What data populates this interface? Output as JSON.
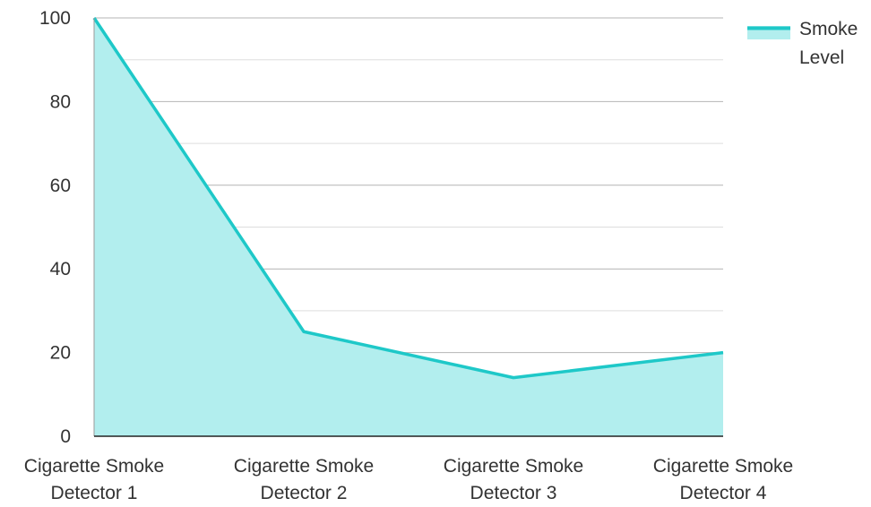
{
  "chart_data": {
    "type": "area",
    "categories": [
      [
        "Cigarette Smoke",
        "Detector 1"
      ],
      [
        "Cigarette Smoke",
        "Detector 2"
      ],
      [
        "Cigarette Smoke",
        "Detector 3"
      ],
      [
        "Cigarette Smoke",
        "Detector 4"
      ]
    ],
    "series": [
      {
        "name": "Smoke Level",
        "name_lines": [
          "Smoke",
          "Level"
        ],
        "values": [
          100,
          25,
          14,
          20
        ]
      }
    ],
    "ylim": [
      0,
      100
    ],
    "yticks": [
      "0",
      "20",
      "40",
      "60",
      "80",
      "100"
    ],
    "grid": true,
    "legend_position": "top-right",
    "colors": {
      "line": "#1ec8c8",
      "fill": "#b2eeee",
      "grid": "#bbbbbb",
      "axis": "#222222"
    }
  }
}
